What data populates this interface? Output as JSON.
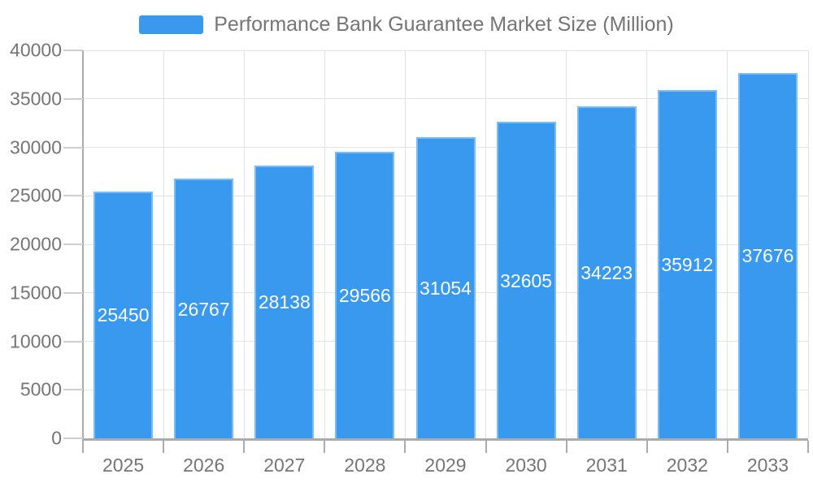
{
  "chart_data": {
    "type": "bar",
    "title": "Performance Bank Guarantee Market Size (Million)",
    "legend_entries": [
      "Performance Bank Guarantee Market Size (Million)"
    ],
    "legend_position": "top-center",
    "categories": [
      "2025",
      "2026",
      "2027",
      "2028",
      "2029",
      "2030",
      "2031",
      "2032",
      "2033"
    ],
    "values": [
      25450,
      26767,
      28138,
      29566,
      31054,
      32605,
      34223,
      35912,
      37676
    ],
    "value_labels_shown": true,
    "value_label_position": "inside-center",
    "xlabel": "",
    "ylabel": "",
    "ylim": [
      0,
      40000
    ],
    "y_tick_interval": 5000,
    "y_tick_labels": [
      "0",
      "5000",
      "10000",
      "15000",
      "20000",
      "25000",
      "30000",
      "35000",
      "40000"
    ],
    "grid": true,
    "colors": {
      "bar_fill": "#3999EE",
      "bar_border": "#7CBCF5",
      "grid_line": "#E3E3E3",
      "axis_line": "#ABABAB",
      "x_tick": "#ABABAB",
      "y_tick": "#CFCFCF",
      "axis_label_text": "#757575",
      "legend_text": "#757575",
      "value_label_text": "#FFFFFF",
      "background": "#FFFFFF"
    }
  }
}
